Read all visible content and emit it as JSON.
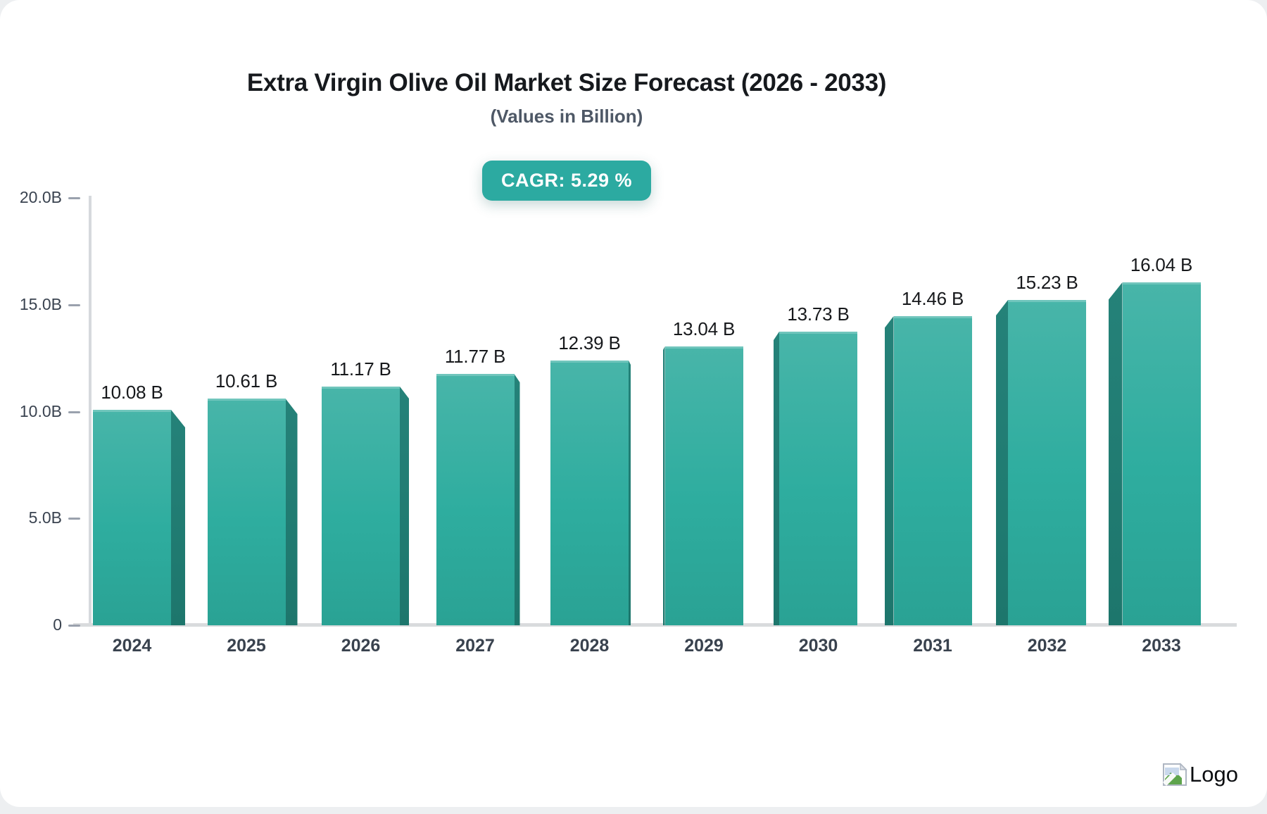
{
  "page": {
    "background_color": "#edeff1",
    "card_color": "#ffffff"
  },
  "chart_data": {
    "type": "bar",
    "title": "Extra Virgin Olive Oil Market Size Forecast (2026 - 2033)",
    "subtitle": "(Values in Billion)",
    "badge_label": "CAGR: 5.29 %",
    "categories": [
      "2024",
      "2025",
      "2026",
      "2027",
      "2028",
      "2029",
      "2030",
      "2031",
      "2032",
      "2033"
    ],
    "values": [
      10.08,
      10.61,
      11.17,
      11.77,
      12.39,
      13.04,
      13.73,
      14.46,
      15.23,
      16.04
    ],
    "value_labels": [
      "10.08 B",
      "10.61 B",
      "11.17 B",
      "11.77 B",
      "12.39 B",
      "13.04 B",
      "13.73 B",
      "14.46 B",
      "15.23 B",
      "16.04 B"
    ],
    "y_ticks": [
      {
        "label": "20.0B",
        "value": 20
      },
      {
        "label": "15.0B",
        "value": 15
      },
      {
        "label": "10.0B",
        "value": 10
      },
      {
        "label": "5.0B",
        "value": 5
      },
      {
        "label": "0",
        "value": 0
      }
    ],
    "ylim": [
      0,
      20
    ],
    "grid": "off",
    "legend": "none",
    "colors": {
      "bar_top": "#48b5a9",
      "bar_bottom": "#2aa294",
      "bar_side": "#1f7e74",
      "badge_bg": "#2caaa1",
      "badge_text": "#ffffff",
      "axis_line": "#d6d9dd",
      "tick_text": "#3a4350",
      "category_text": "#39424e",
      "value_text": "#17191c",
      "title_text": "#16191d",
      "subtitle_text": "#4e5866"
    }
  },
  "footer": {
    "logo_text": "Logo",
    "logo_icon": "broken-image-icon"
  }
}
